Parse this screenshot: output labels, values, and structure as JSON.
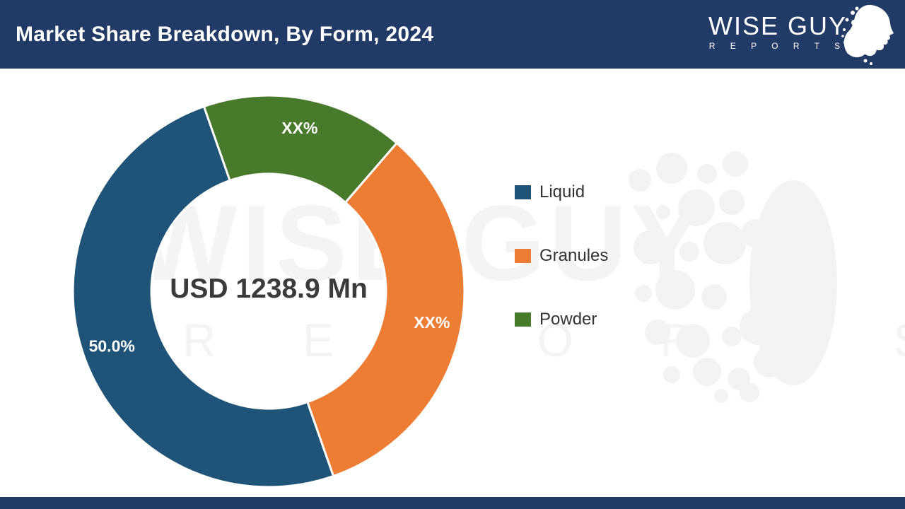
{
  "header": {
    "title": "Market Share Breakdown, By Form, 2024",
    "bg_color": "#213A66"
  },
  "logo": {
    "line1": "WISE GUY",
    "line2": "R E P O R T S",
    "icon": "dotted-face-profile-icon"
  },
  "watermark": {
    "line1": "WISE GUY",
    "line2": "R E P O R T S",
    "icon": "dotted-face-profile-watermark"
  },
  "chart_data": {
    "type": "pie",
    "donut": true,
    "title": "Market Share Breakdown, By Form, 2024",
    "center_label": "USD 1238.9 Mn",
    "categories": [
      "Liquid",
      "Granules",
      "Powder"
    ],
    "values": [
      50.0,
      33.3,
      16.7
    ],
    "slice_labels": [
      "50.0%",
      "XX%",
      "XX%"
    ],
    "colors": [
      "#1F5478",
      "#EC7D33",
      "#477A2B"
    ],
    "start_angle_deg": 109.3,
    "direction": "counterclockwise",
    "legend_position": "right",
    "label_text_color": "#ffffff",
    "center_label_color": "#3B3B3B"
  },
  "legend": {
    "items": [
      {
        "label": "Liquid",
        "color": "#1F5478"
      },
      {
        "label": "Granules",
        "color": "#EC7D33"
      },
      {
        "label": "Powder",
        "color": "#477A2B"
      }
    ]
  }
}
